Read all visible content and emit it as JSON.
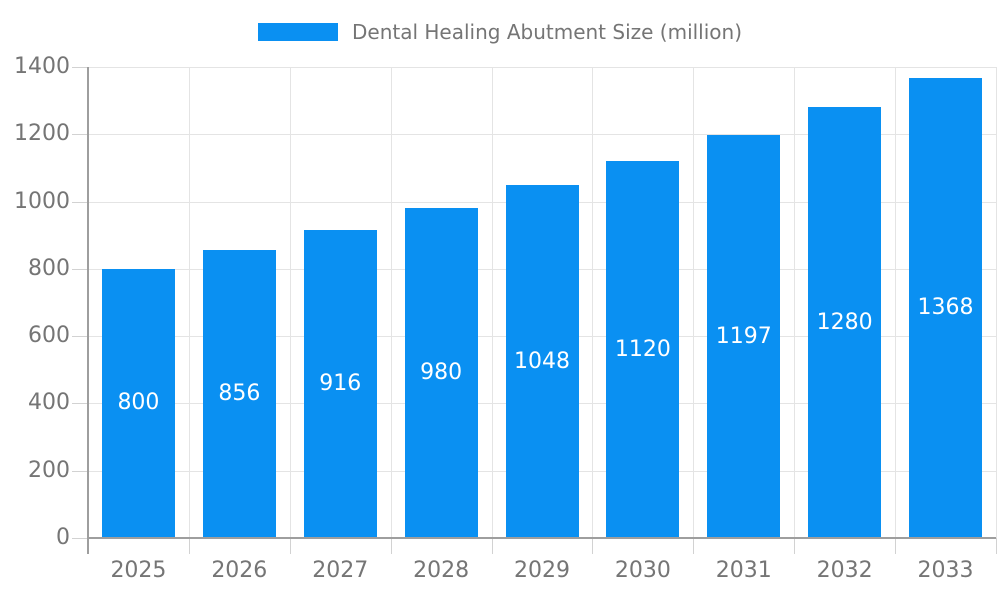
{
  "legend": {
    "label": "Dental Healing Abutment Size (million)",
    "swatch_color": "#0a90f2"
  },
  "chart_data": {
    "type": "bar",
    "title": "Dental Healing Abutment Size (million)",
    "categories": [
      "2025",
      "2026",
      "2027",
      "2028",
      "2029",
      "2030",
      "2031",
      "2032",
      "2033"
    ],
    "values": [
      800,
      856,
      916,
      980,
      1048,
      1120,
      1197,
      1280,
      1368
    ],
    "bar_labels": [
      "800",
      "856",
      "916",
      "980",
      "1048",
      "1120",
      "1197",
      "1280",
      "1368"
    ],
    "xlabel": "",
    "ylabel": "",
    "ylim": [
      0,
      1400
    ],
    "yticks": [
      0,
      200,
      400,
      600,
      800,
      1000,
      1200,
      1400
    ],
    "ytick_labels": [
      "0",
      "200",
      "400",
      "600",
      "800",
      "1000",
      "1200",
      "1400"
    ],
    "grid": true,
    "legend_position": "top-center",
    "colors": {
      "bar": "#0a90f2",
      "bar_value_label": "#ffffff",
      "axis_text": "#757575",
      "grid_line": "#e4e4e4",
      "axis_line": "#9e9e9e",
      "tick_mark": "#d2d2d2",
      "background": "#ffffff"
    }
  }
}
